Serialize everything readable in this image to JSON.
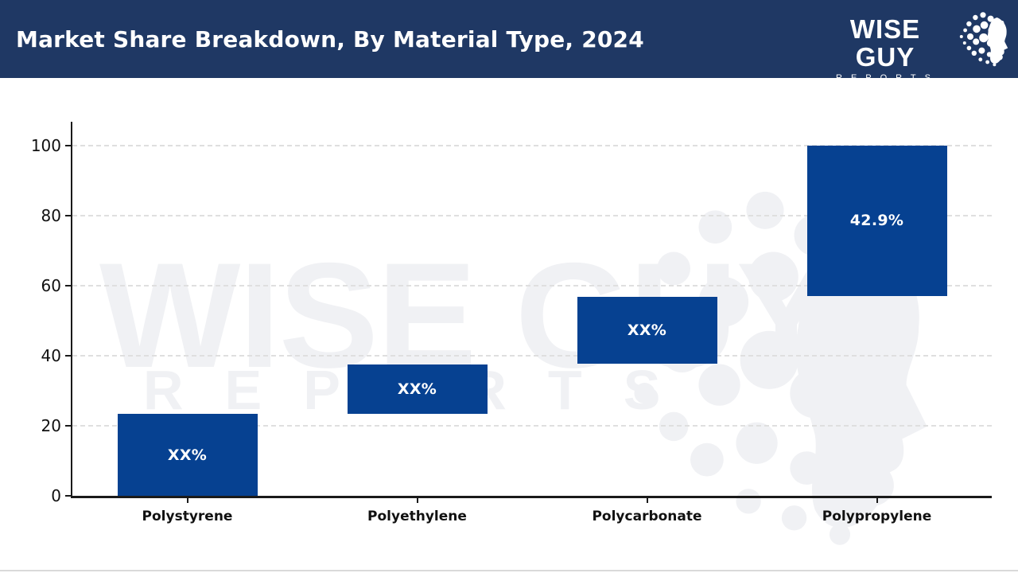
{
  "header": {
    "title": "Market Share Breakdown, By Material Type, 2024",
    "logo": {
      "line1": "WISE GUY",
      "line2": "REPORTS"
    }
  },
  "watermark": {
    "line1": "WISE GUY",
    "line2": "REPORTS"
  },
  "chart_data": {
    "type": "bar",
    "subtype": "waterfall-floating-bars",
    "title": "Market Share Breakdown, By Material Type, 2024",
    "xlabel": "",
    "ylabel": "",
    "categories": [
      "Polystyrene",
      "Polyethylene",
      "Polycarbonate",
      "Polypropylene"
    ],
    "segments": [
      {
        "category": "Polystyrene",
        "start": 0,
        "end": 23.4,
        "increment": 23.4,
        "label": "XX%"
      },
      {
        "category": "Polyethylene",
        "start": 23.4,
        "end": 37.6,
        "increment": 14.2,
        "label": "XX%"
      },
      {
        "category": "Polycarbonate",
        "start": 37.7,
        "end": 56.8,
        "increment": 19.1,
        "label": "XX%"
      },
      {
        "category": "Polypropylene",
        "start": 57.1,
        "end": 100,
        "increment": 42.9,
        "label": "42.9%"
      }
    ],
    "y_ticks": [
      0,
      20,
      40,
      60,
      80,
      100
    ],
    "ylim": [
      0,
      100
    ],
    "grid": "horizontal dashed",
    "legend": "none",
    "bar_color": "#064191",
    "bar_label_color": "#ffffff",
    "header_color": "#1f3864",
    "gridline_color": "#dfdfdf",
    "watermark_color": "#f0f1f4"
  }
}
